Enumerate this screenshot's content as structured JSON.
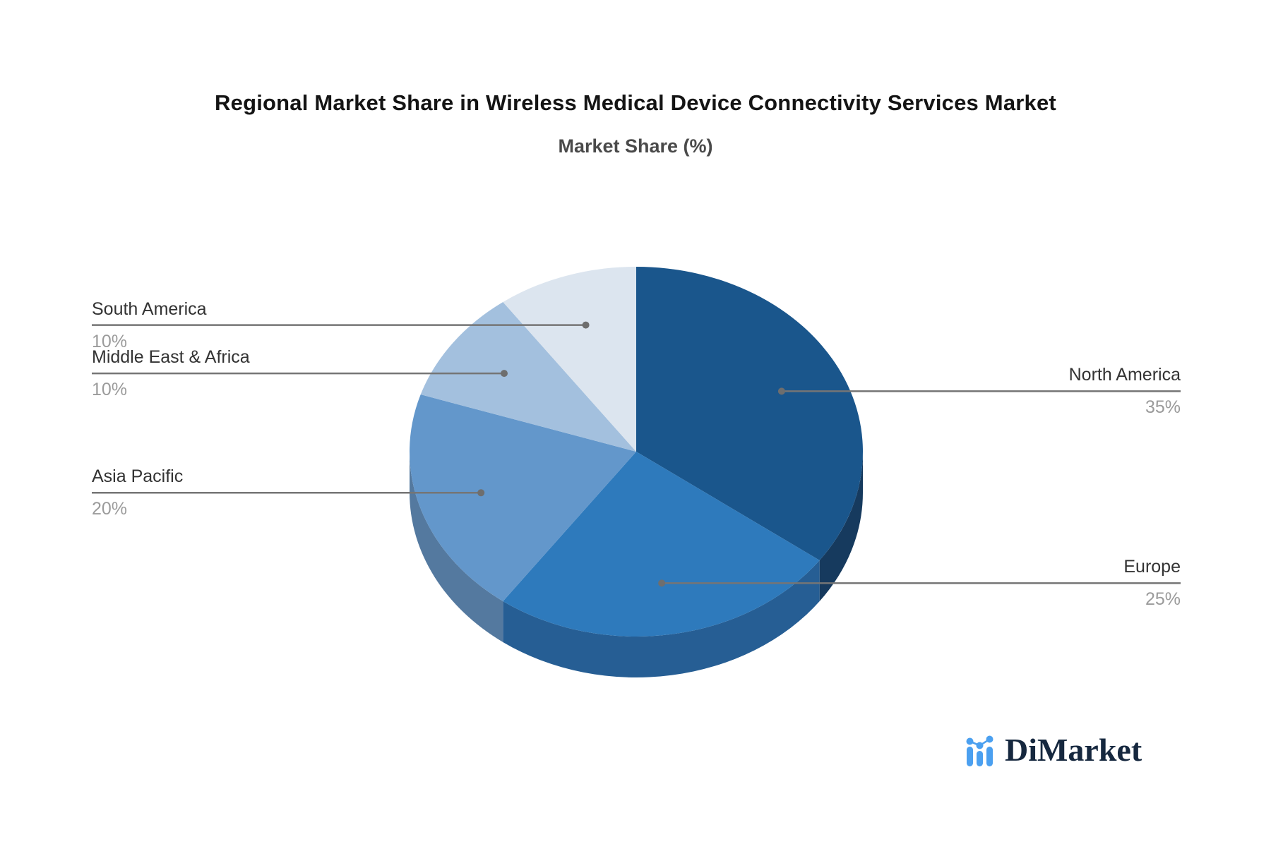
{
  "title": "Regional Market Share in Wireless Medical Device Connectivity Services Market",
  "subtitle": "Market Share (%)",
  "chart_data": {
    "type": "pie",
    "style": "3d",
    "unit": "percent",
    "title": "Regional Market Share in Wireless Medical Device Connectivity Services Market",
    "subtitle": "Market Share (%)",
    "start_angle_deg": 90,
    "direction": "clockwise",
    "leader_line_color": "#757575",
    "leader_dot_color": "#6e6e6e",
    "slices": [
      {
        "label": "North America",
        "value": 35,
        "value_label": "35%",
        "color": "#1a568c",
        "side_color": "#163a5e",
        "label_side": "right"
      },
      {
        "label": "Europe",
        "value": 25,
        "value_label": "25%",
        "color": "#2e7abc",
        "side_color": "#265e94",
        "label_side": "right"
      },
      {
        "label": "Asia Pacific",
        "value": 20,
        "value_label": "20%",
        "color": "#6397cb",
        "side_color": "#54799f",
        "label_side": "left"
      },
      {
        "label": "Middle East & Africa",
        "value": 10,
        "value_label": "10%",
        "color": "#a3c0de",
        "side_color": "#8fa9c4",
        "label_side": "left"
      },
      {
        "label": "South America",
        "value": 10,
        "value_label": "10%",
        "color": "#dce5ef",
        "side_color": "#c2cedd",
        "label_side": "left"
      }
    ]
  },
  "logo": {
    "text": "DiMarket",
    "icon": "bar-line-chart-icon",
    "icon_color": "#4ba0f0",
    "text_color": "#16283f"
  }
}
